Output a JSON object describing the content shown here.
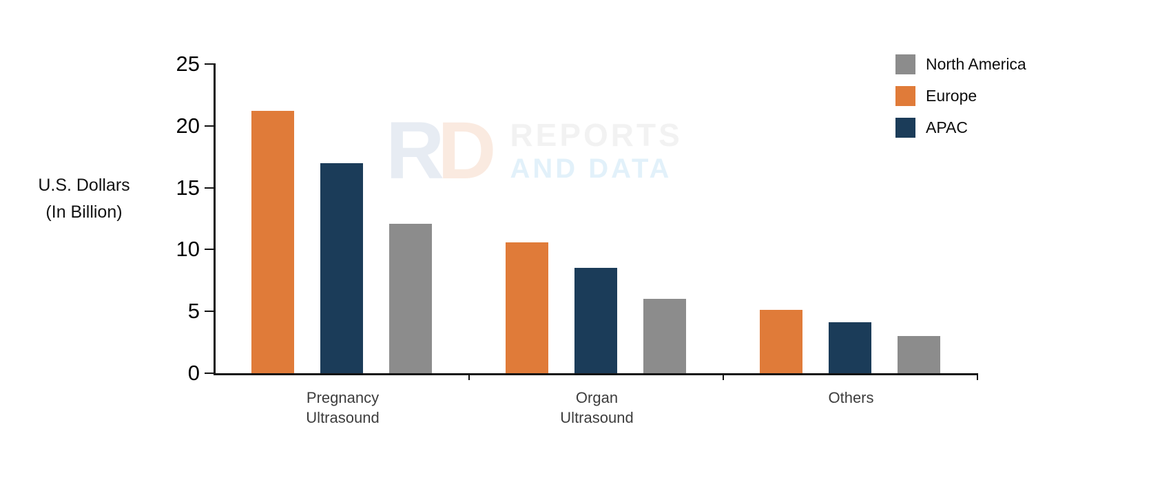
{
  "chart_data": {
    "type": "bar",
    "title": "",
    "ylabel": "U.S. Dollars\n(In Billion)",
    "xlabel": "",
    "ylim": [
      0,
      25
    ],
    "yticks": [
      0,
      5,
      10,
      15,
      20,
      25
    ],
    "grid": false,
    "legend_position": "top-right",
    "categories": [
      "Pregnancy\nUltrasound",
      "Organ\nUltrasound",
      "Others"
    ],
    "series": [
      {
        "name": "Europe",
        "color": "#e07b39",
        "values": [
          21.2,
          10.6,
          5.1
        ]
      },
      {
        "name": "APAC",
        "color": "#1b3c59",
        "values": [
          17.0,
          8.5,
          4.1
        ]
      },
      {
        "name": "North America",
        "color": "#8c8c8c",
        "values": [
          12.1,
          6.0,
          3.0
        ]
      }
    ],
    "legend": [
      {
        "label": "North America",
        "color": "#8c8c8c"
      },
      {
        "label": "Europe",
        "color": "#e07b39"
      },
      {
        "label": "APAC",
        "color": "#1b3c59"
      }
    ],
    "axis_color": "#121212"
  },
  "watermark": {
    "logo_r": "R",
    "logo_d": "D",
    "line1": "REPORTS",
    "line2": "AND DATA"
  }
}
